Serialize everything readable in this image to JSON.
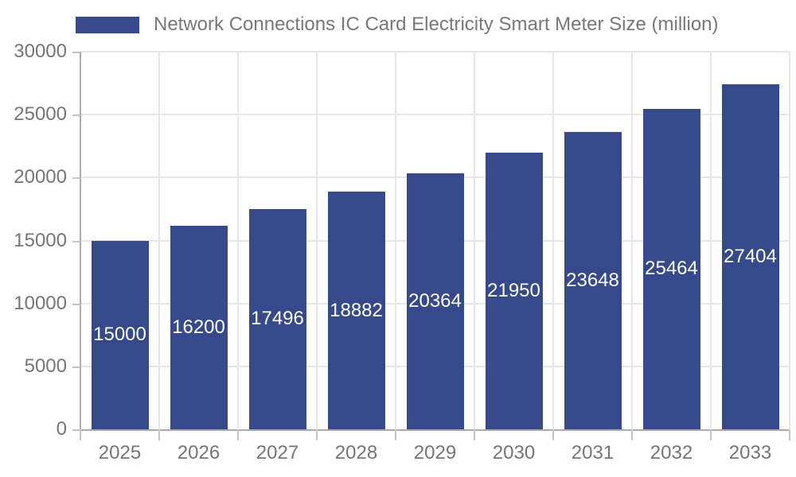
{
  "legend": {
    "label": "Network Connections IC Card Electricity Smart Meter Size (million)"
  },
  "chart_data": {
    "type": "bar",
    "title": "Network Connections IC Card Electricity Smart Meter Size (million)",
    "series_name": "Network Connections IC Card Electricity Smart Meter Size (million)",
    "categories": [
      "2025",
      "2026",
      "2027",
      "2028",
      "2029",
      "2030",
      "2031",
      "2032",
      "2033"
    ],
    "values": [
      15000,
      16200,
      17496,
      18882,
      20364,
      21950,
      23648,
      25464,
      27404
    ],
    "xlabel": "",
    "ylabel": "",
    "ylim": [
      0,
      30000
    ],
    "y_ticks": [
      0,
      5000,
      10000,
      15000,
      20000,
      25000,
      30000
    ],
    "grid": true,
    "legend_position": "top-left",
    "bar_label_position": "inside-center",
    "colors": {
      "bar": "#36498B",
      "bar_label": "#ffffff",
      "gridline": "#E6E6E6",
      "axis_line": "#AAAAAA",
      "tick_mark": "#C4C4C4",
      "tick_label": "#757575",
      "legend_text": "#787878",
      "background": "#ffffff"
    }
  }
}
